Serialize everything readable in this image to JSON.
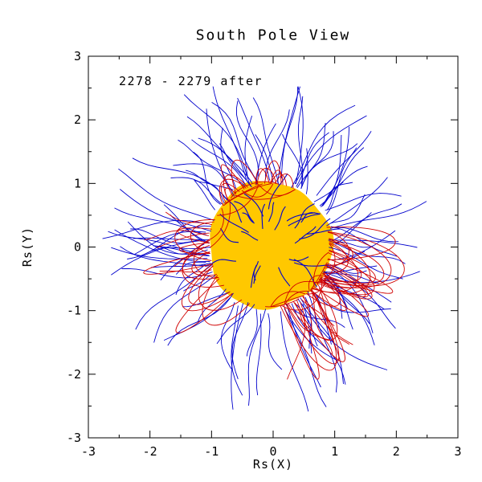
{
  "chart_data": {
    "type": "line",
    "chart_kind": "solar-magnetic-field-line-plot",
    "title": "South Pole View",
    "annotation": "2278 - 2279 after",
    "xlabel": "Rs(X)",
    "ylabel": "Rs(Y)",
    "xlim": [
      -3,
      3
    ],
    "ylim": [
      -3,
      3
    ],
    "xticks": [
      -3,
      -2,
      -1,
      0,
      1,
      2,
      3
    ],
    "xtick_labels": [
      "-3",
      "-2",
      "-1",
      "0",
      "1",
      "2",
      "3"
    ],
    "yticks": [
      -3,
      -2,
      -1,
      0,
      1,
      2,
      3
    ],
    "ytick_labels": [
      "-3",
      "-2",
      "-1",
      "0",
      "1",
      "2",
      "3"
    ],
    "minor_tick_interval": 0.5,
    "grid": false,
    "legend": null,
    "colors": {
      "background": "#FFFFFF",
      "axis": "#000000",
      "sun": "#FFC800",
      "open_field": "#0000CC",
      "closed_field": "#D00000"
    },
    "sun": {
      "radius_rs": 1.0,
      "center": [
        -0.06,
        0.03
      ]
    },
    "field_lines": {
      "seed": 20240601,
      "open_blue": {
        "count": 125,
        "r_start_min": 0.95,
        "r_start_max": 1.1,
        "r_end_min": 1.55,
        "r_end_max": 2.75
      },
      "disk_segments_blue": {
        "count": 26,
        "r_start_min": 0.15,
        "r_start_max": 0.65,
        "length_min": 0.25,
        "length_max": 0.6
      },
      "red_loop_clusters": [
        {
          "name": "lower-right",
          "count": 26,
          "angle_min": -85,
          "angle_max": -10,
          "span_min": 12,
          "span_max": 50,
          "rmax_min": 1.2,
          "rmax_max": 2.3
        },
        {
          "name": "lower-right-disk",
          "count": 10,
          "angle_min": -95,
          "angle_max": -35,
          "span_min": 15,
          "span_max": 40,
          "rmax_min": 0.75,
          "rmax_max": 1.15
        },
        {
          "name": "left",
          "count": 14,
          "angle_min": 148,
          "angle_max": 218,
          "span_min": 10,
          "span_max": 45,
          "rmax_min": 1.1,
          "rmax_max": 2.2
        },
        {
          "name": "top",
          "count": 12,
          "angle_min": 48,
          "angle_max": 132,
          "span_min": 8,
          "span_max": 32,
          "rmax_min": 1.05,
          "rmax_max": 1.5
        },
        {
          "name": "disk-top",
          "count": 9,
          "angle_min": 35,
          "angle_max": 145,
          "span_min": 28,
          "span_max": 62,
          "rmax_min": 0.72,
          "rmax_max": 1.05
        }
      ],
      "red_open_clusters": [
        {
          "name": "lower-right-streamers",
          "count": 8,
          "angle_min": -70,
          "angle_max": -18,
          "r_end_min": 1.6,
          "r_end_max": 2.35
        },
        {
          "name": "left-streamers",
          "count": 5,
          "angle_min": 160,
          "angle_max": 205,
          "r_end_min": 1.5,
          "r_end_max": 2.1
        }
      ]
    }
  }
}
